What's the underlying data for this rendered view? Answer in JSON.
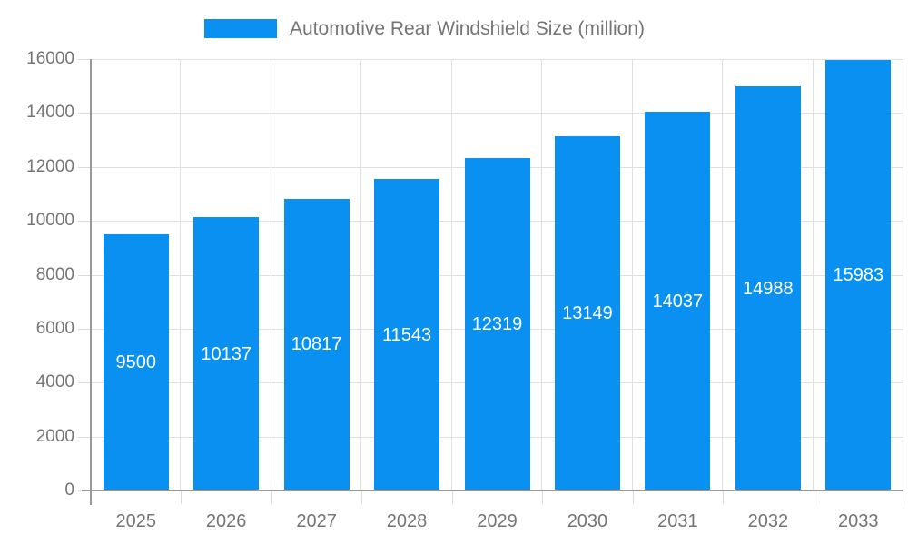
{
  "chart_data": {
    "type": "bar",
    "title": "Automotive Rear Windshield Size (million)",
    "legend": {
      "position": "top",
      "entries": [
        "Automotive Rear Windshield Size (million)"
      ]
    },
    "categories": [
      "2025",
      "2026",
      "2027",
      "2028",
      "2029",
      "2030",
      "2031",
      "2032",
      "2033"
    ],
    "values": [
      9500,
      10137,
      10817,
      11543,
      12319,
      13149,
      14037,
      14988,
      15983
    ],
    "xlabel": "",
    "ylabel": "",
    "ylim": [
      0,
      16000
    ],
    "ytick_step": 2000,
    "ytick_labels": [
      "0",
      "2000",
      "4000",
      "6000",
      "8000",
      "10000",
      "12000",
      "14000",
      "16000"
    ],
    "grid": true,
    "data_labels": "inside-center",
    "colors": {
      "bar": "#0a90f0",
      "axis": "#999999",
      "grid": "#e0e0e0",
      "tick": "#d9d9d9",
      "text": "#757575",
      "bar_label": "#ffffff",
      "background": "#ffffff"
    }
  }
}
